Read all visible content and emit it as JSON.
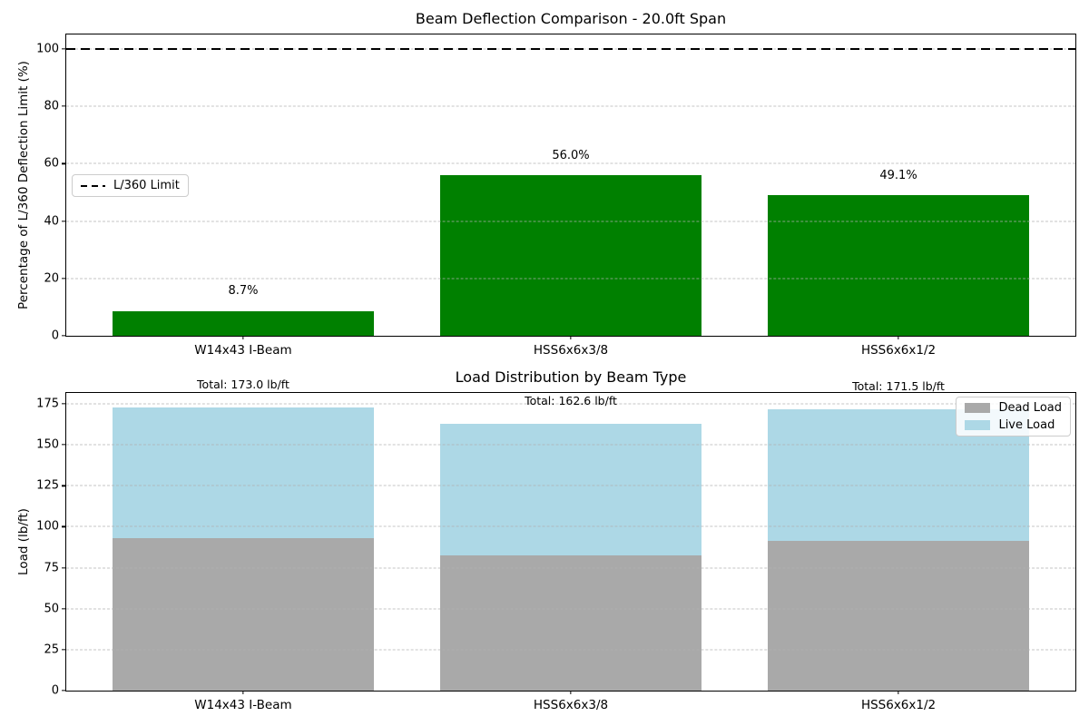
{
  "chart_data": [
    {
      "type": "bar",
      "title": "Beam Deflection Comparison - 20.0ft Span",
      "xlabel": "",
      "ylabel": "Percentage of L/360 Deflection Limit (%)",
      "categories": [
        "W14x43 I-Beam",
        "HSS6x6x3/8",
        "HSS6x6x1/2"
      ],
      "values": [
        8.7,
        56.0,
        49.1
      ],
      "bar_labels": [
        "8.7%",
        "56.0%",
        "49.1%"
      ],
      "bar_color": "#008000",
      "ylim": [
        0,
        105
      ],
      "yticks": [
        0,
        20,
        40,
        60,
        80,
        100
      ],
      "ytick_labels": [
        "0",
        "20",
        "40",
        "60",
        "80",
        "100"
      ],
      "grid": "dashed-horizontal",
      "reference_line": {
        "value": 100,
        "label": "L/360 Limit",
        "color": "#000000",
        "style": "dashed"
      },
      "legend": {
        "position": "center-left",
        "entries": [
          {
            "label": "L/360 Limit",
            "marker": "dashed-line",
            "color": "#000000"
          }
        ]
      }
    },
    {
      "type": "stacked-bar",
      "title": "Load Distribution by Beam Type",
      "xlabel": "",
      "ylabel": "Load (lb/ft)",
      "categories": [
        "W14x43 I-Beam",
        "HSS6x6x3/8",
        "HSS6x6x1/2"
      ],
      "series": [
        {
          "name": "Dead Load",
          "color": "#a9a9a9",
          "values": [
            93.0,
            82.6,
            91.5
          ]
        },
        {
          "name": "Live Load",
          "color": "#add8e6",
          "values": [
            80.0,
            80.0,
            80.0
          ]
        }
      ],
      "totals": [
        173.0,
        162.6,
        171.5
      ],
      "total_labels": [
        "Total: 173.0 lb/ft",
        "Total: 162.6 lb/ft",
        "Total: 171.5 lb/ft"
      ],
      "ylim": [
        0,
        181.65
      ],
      "yticks": [
        0,
        25,
        50,
        75,
        100,
        125,
        150,
        175
      ],
      "ytick_labels": [
        "0",
        "25",
        "50",
        "75",
        "100",
        "125",
        "150",
        "175"
      ],
      "grid": "dashed-horizontal",
      "legend": {
        "position": "upper-right",
        "entries": [
          {
            "label": "Dead Load",
            "marker": "patch",
            "color": "#a9a9a9"
          },
          {
            "label": "Live Load",
            "marker": "patch",
            "color": "#add8e6"
          }
        ]
      }
    }
  ]
}
